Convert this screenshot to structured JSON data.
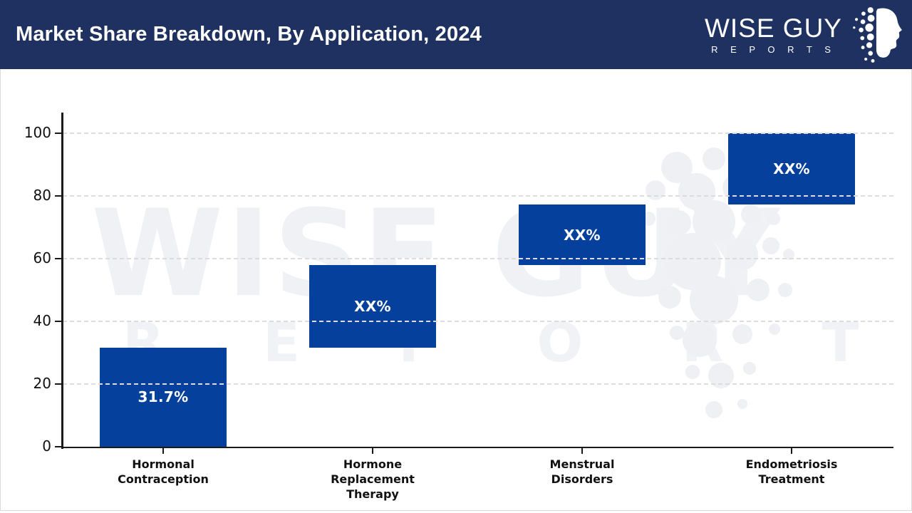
{
  "header": {
    "brand": {
      "line1": "WISE GUY",
      "line2": "R E P O R T S",
      "icon": "dotted-face-profile-icon"
    }
  },
  "watermark": {
    "line1": "WISE GUY",
    "line2": "R E P O R T S",
    "icon": "dotted-head-pattern"
  },
  "colors": {
    "header_bg": "#1f3161",
    "bar_fill": "#05419c",
    "bar_label": "#ffffff",
    "gridline": "#dcdcdc",
    "axis": "#1a1a1a",
    "tick_text": "#111111",
    "watermark_text": "#f0f1f5"
  },
  "chart_data": {
    "type": "bar",
    "subtype": "waterfall",
    "title": "Market Share Breakdown, By Application, 2024",
    "categories": [
      "Hormonal\nContraception",
      "Hormone\nReplacement\nTherapy",
      "Menstrual\nDisorders",
      "Endometriosis\nTreatment"
    ],
    "bars": [
      {
        "category": "Hormonal Contraception",
        "start": 0,
        "end": 31.7,
        "label": "31.7%"
      },
      {
        "category": "Hormone Replacement Therapy",
        "start": 31.7,
        "end": 57.9,
        "label": "XX%"
      },
      {
        "category": "Menstrual Disorders",
        "start": 57.9,
        "end": 77.3,
        "label": "XX%"
      },
      {
        "category": "Endometriosis Treatment",
        "start": 77.3,
        "end": 100,
        "label": "XX%"
      }
    ],
    "yticks": [
      0,
      20,
      40,
      60,
      80,
      100
    ],
    "ylim": [
      0,
      100
    ],
    "xlabel": "",
    "ylabel": "",
    "grid": "horizontal-dashed-above-bars",
    "legend": null
  }
}
